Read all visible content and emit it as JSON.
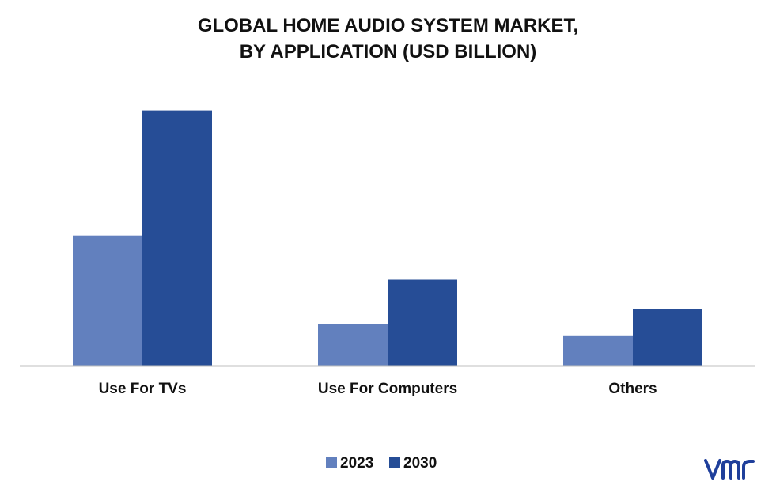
{
  "chart_data": {
    "type": "bar",
    "title_lines": [
      "GLOBAL HOME AUDIO SYSTEM MARKET,",
      "BY APPLICATION (USD BILLION)"
    ],
    "categories": [
      "Use For TVs",
      "Use For Computers",
      "Others"
    ],
    "series": [
      {
        "name": "2023",
        "color": "#6280be",
        "values": [
          5.3,
          1.7,
          1.2
        ]
      },
      {
        "name": "2030",
        "color": "#264d96",
        "values": [
          10.4,
          3.5,
          2.3
        ]
      }
    ],
    "ylim": [
      0,
      11
    ],
    "grid": false,
    "legend": "bottom-center",
    "axis_color": "#bfbfbf"
  },
  "logo": {
    "text": "vmr",
    "color": "#1f3f9b"
  }
}
